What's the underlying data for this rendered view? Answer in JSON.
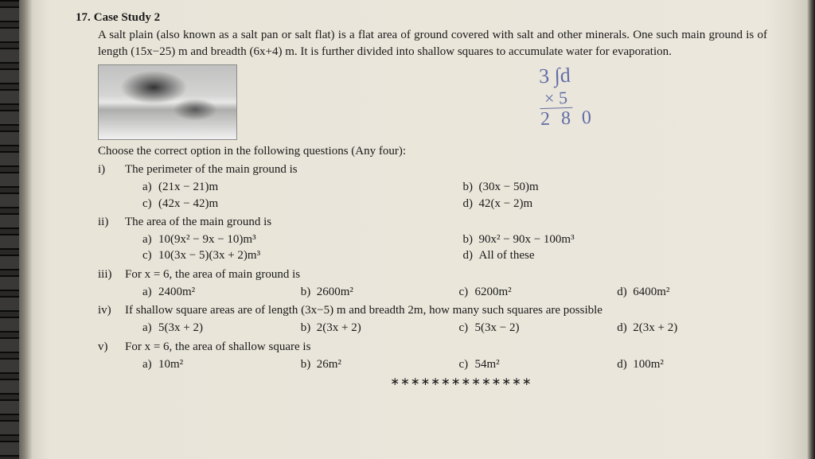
{
  "question_number": "17.",
  "title": "Case Study 2",
  "paragraph": "A salt plain (also known as a salt pan or salt flat) is a flat area of ground covered with salt and other minerals. One such main ground is of length (15x−25) m and breadth (6x+4) m. It is further divided into shallow squares to accumulate water for evaporation.",
  "handwriting": {
    "l1": "3 ∫d",
    "l2": "× 5",
    "l3": "2 8 0"
  },
  "instruction": "Choose the correct option in the following questions (Any four):",
  "questions": [
    {
      "num": "i)",
      "text": "The perimeter of the main ground is",
      "layout": "2col",
      "opts": [
        {
          "l": "a)",
          "t": "(21x − 21)m"
        },
        {
          "l": "b)",
          "t": "(30x − 50)m"
        },
        {
          "l": "c)",
          "t": "(42x − 42)m"
        },
        {
          "l": "d)",
          "t": "42(x − 2)m"
        }
      ]
    },
    {
      "num": "ii)",
      "text": "The area of the main ground is",
      "layout": "2col",
      "opts": [
        {
          "l": "a)",
          "t": "10(9x² − 9x − 10)m³"
        },
        {
          "l": "b)",
          "t": "90x² − 90x − 100m³"
        },
        {
          "l": "c)",
          "t": "10(3x − 5)(3x + 2)m³"
        },
        {
          "l": "d)",
          "t": "All of these"
        }
      ]
    },
    {
      "num": "iii)",
      "text": "For x = 6, the area of main ground is",
      "layout": "4col",
      "opts": [
        {
          "l": "a)",
          "t": "2400m²"
        },
        {
          "l": "b)",
          "t": "2600m²"
        },
        {
          "l": "c)",
          "t": "6200m²"
        },
        {
          "l": "d)",
          "t": "6400m²"
        }
      ]
    },
    {
      "num": "iv)",
      "text": "If shallow square areas are of length (3x−5) m and breadth 2m, how many such squares are possible",
      "layout": "4col",
      "opts": [
        {
          "l": "a)",
          "t": "5(3x + 2)"
        },
        {
          "l": "b)",
          "t": "2(3x + 2)"
        },
        {
          "l": "c)",
          "t": "5(3x − 2)"
        },
        {
          "l": "d)",
          "t": "2(3x + 2)"
        }
      ]
    },
    {
      "num": "v)",
      "text": "For x = 6, the area of shallow square is",
      "layout": "4col",
      "opts": [
        {
          "l": "a)",
          "t": "10m²"
        },
        {
          "l": "b)",
          "t": "26m²"
        },
        {
          "l": "c)",
          "t": "54m²"
        },
        {
          "l": "d)",
          "t": "100m²"
        }
      ]
    }
  ],
  "stars": "∗∗∗∗∗∗∗∗∗∗∗∗∗∗"
}
